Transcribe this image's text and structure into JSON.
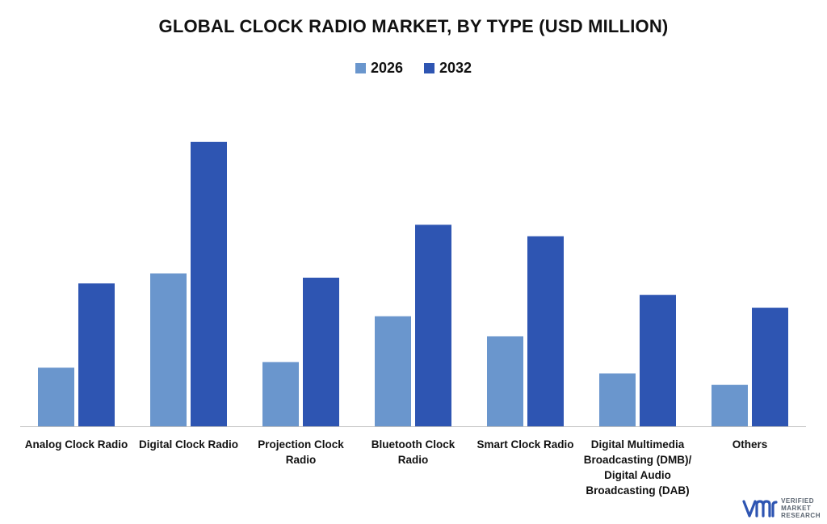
{
  "chart_data": {
    "type": "bar",
    "title": "GLOBAL CLOCK RADIO MARKET, BY TYPE (USD MILLION)",
    "xlabel": "",
    "ylabel": "",
    "ylim": [
      0,
      100
    ],
    "grid": false,
    "legend_position": "top",
    "categories": [
      "Analog Clock Radio",
      "Digital Clock Radio",
      "Projection Clock Radio",
      "Bluetooth Clock Radio",
      "Smart Clock Radio",
      "Digital Multimedia Broadcasting (DMB)/ Digital Audio Broadcasting (DAB)",
      "Others"
    ],
    "series": [
      {
        "name": "2026",
        "color": "#6a96cd",
        "values": [
          20.5,
          53.5,
          22.5,
          38.5,
          31.5,
          18.5,
          14.5
        ]
      },
      {
        "name": "2032",
        "color": "#2e55b2",
        "values": [
          50,
          99.5,
          52,
          70.5,
          66.5,
          46,
          41.5
        ]
      }
    ]
  },
  "brand": {
    "logo_letters": "VMR",
    "text_lines": [
      "VERIFIED",
      "MARKET",
      "RESEARCH"
    ]
  }
}
